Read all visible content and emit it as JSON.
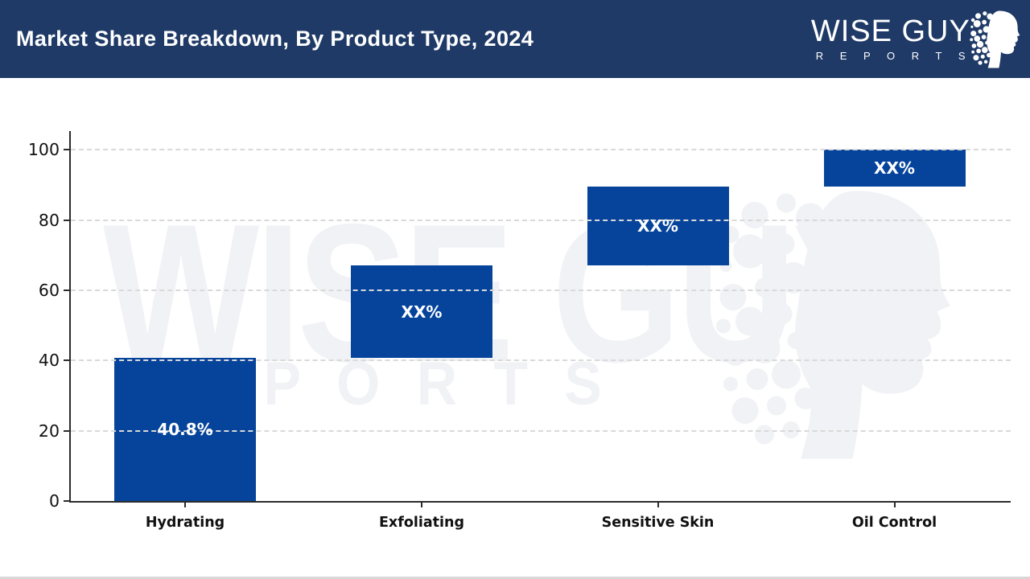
{
  "header": {
    "title": "Market Share Breakdown, By Product Type, 2024",
    "logo": {
      "wordmark": "WISE GUY",
      "tagline": "R E P O R T S"
    }
  },
  "watermark": {
    "wordmark": "WISE GUY",
    "tagline": "R E P O R T S"
  },
  "chart_data": {
    "type": "bar",
    "subtype": "waterfall",
    "title": "Market Share Breakdown, By Product Type, 2024",
    "categories": [
      "Hydrating",
      "Exfoliating",
      "Sensitive Skin",
      "Oil Control"
    ],
    "segments": [
      {
        "category": "Hydrating",
        "start": 0,
        "end": 40.8,
        "label": "40.8%"
      },
      {
        "category": "Exfoliating",
        "start": 40.8,
        "end": 67,
        "label": "XX%"
      },
      {
        "category": "Sensitive Skin",
        "start": 67,
        "end": 89.5,
        "label": "XX%"
      },
      {
        "category": "Oil Control",
        "start": 89.5,
        "end": 100,
        "label": "XX%"
      }
    ],
    "yticks": [
      0,
      20,
      40,
      60,
      80,
      100
    ],
    "ylim": [
      0,
      105
    ],
    "xlabel": "",
    "ylabel": "",
    "grid": true,
    "legend": false,
    "colors": {
      "bar": "#06449c",
      "grid": "#d9d9d9",
      "axis": "#2b2b2b",
      "bar_label": "#ffffff",
      "tick_label": "#111111",
      "header_bg": "#1f3a67",
      "watermark": "#f1f2f5"
    }
  }
}
